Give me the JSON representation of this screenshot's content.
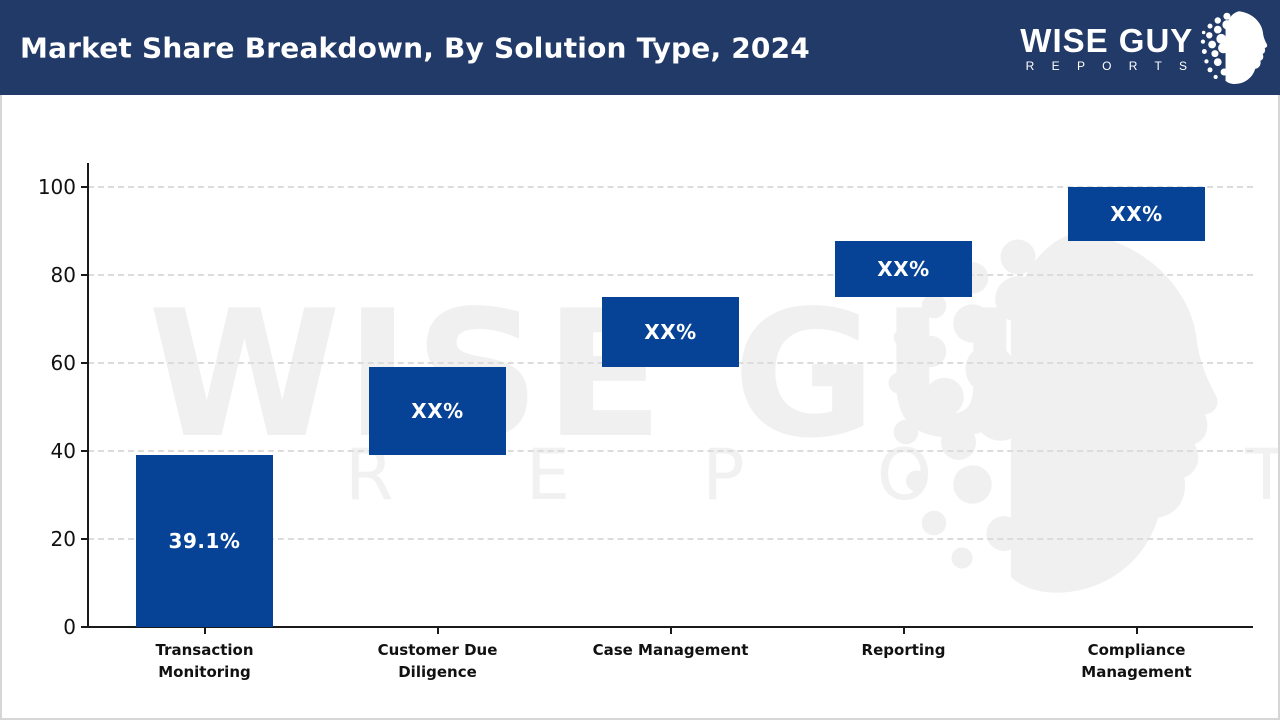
{
  "header": {
    "title": "Market Share Breakdown, By Solution Type, 2024",
    "logo_line1": "WISE GUY",
    "logo_line2": "R E P O R T S"
  },
  "watermark": {
    "line1": "WISE GUY",
    "line2": "R E P O R T S"
  },
  "colors": {
    "header_bg": "#223A68",
    "bar": "#064295",
    "grid": "#DCDCDC",
    "axis": "#1A1A1A",
    "tick_text": "#111111",
    "bar_label_text": "#FFFFFF",
    "watermark": "#F0F0F0"
  },
  "chart_data": {
    "type": "bar",
    "subtype": "waterfall",
    "title": "Market Share Breakdown, By Solution Type, 2024",
    "ylim": [
      0,
      100
    ],
    "y_ticks": [
      0,
      20,
      40,
      60,
      80,
      100
    ],
    "grid": "horizontal-dashed",
    "legend": "none",
    "categories": [
      "Transaction Monitoring",
      "Customer Due Diligence",
      "Case Management",
      "Reporting",
      "Compliance Management"
    ],
    "category_label_lines": [
      [
        "Transaction",
        "Monitoring"
      ],
      [
        "Customer Due",
        "Diligence"
      ],
      [
        "Case Management"
      ],
      [
        "Reporting"
      ],
      [
        "Compliance",
        "Management"
      ]
    ],
    "segments": [
      {
        "category": "Transaction Monitoring",
        "start": 0,
        "end": 39.1,
        "label": "39.1%"
      },
      {
        "category": "Customer Due Diligence",
        "start": 39.1,
        "end": 59.1,
        "label": "XX%"
      },
      {
        "category": "Case Management",
        "start": 59.1,
        "end": 74.9,
        "label": "XX%"
      },
      {
        "category": "Reporting",
        "start": 74.9,
        "end": 87.8,
        "label": "XX%"
      },
      {
        "category": "Compliance Management",
        "start": 87.8,
        "end": 100,
        "label": "XX%"
      }
    ]
  }
}
